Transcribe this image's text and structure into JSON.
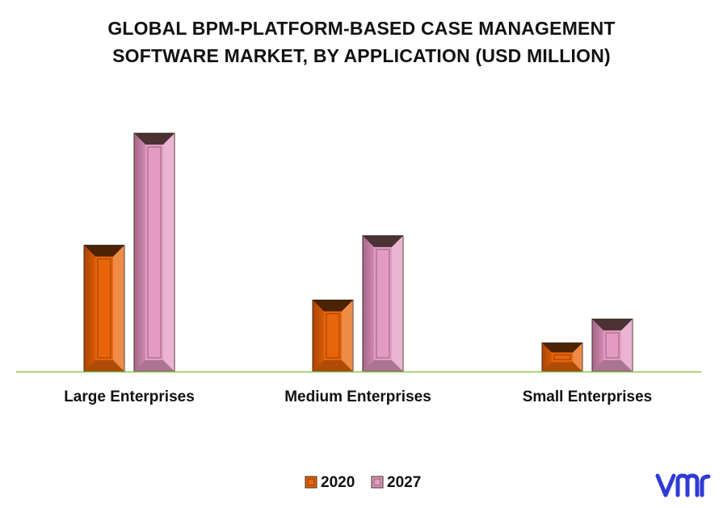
{
  "chart_data": {
    "type": "bar",
    "title_lines": [
      "GLOBAL BPM-PLATFORM-BASED CASE MANAGEMENT",
      "SOFTWARE MARKET, BY APPLICATION (USD MILLION)"
    ],
    "categories": [
      "Large Enterprises",
      "Medium Enterprises",
      "Small Enterprises"
    ],
    "series": [
      {
        "name": "2020",
        "values": [
          53,
          30,
          12
        ],
        "color": "#e8650a"
      },
      {
        "name": "2027",
        "values": [
          100,
          57,
          22
        ],
        "color": "#e49bc2"
      }
    ],
    "ylim": [
      0,
      100
    ],
    "y_axis_visible": false,
    "grid": false,
    "baseline_color": "#8cc44a",
    "legend": "bottom-center"
  },
  "logo": {
    "name": "vmr-logo",
    "color": "#2f3bd6"
  }
}
